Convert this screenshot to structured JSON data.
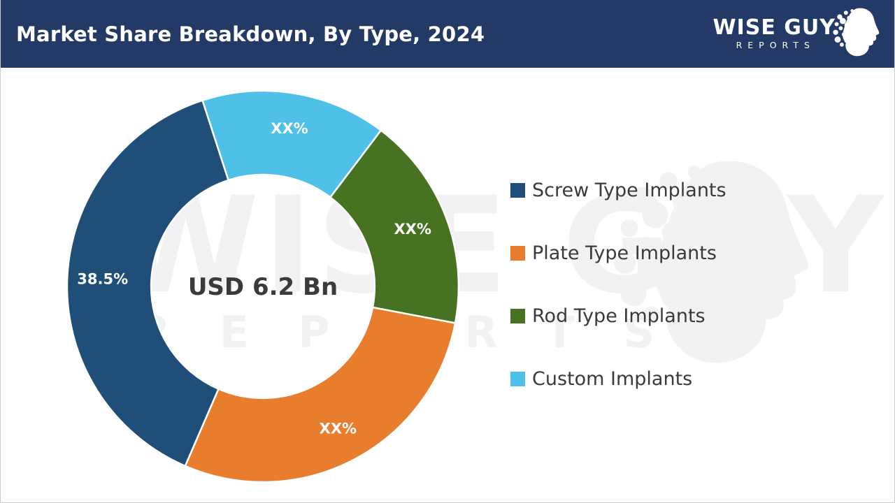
{
  "header": {
    "title": "Market Share Breakdown, By Type, 2024",
    "logo": {
      "line1": "WISE GUY",
      "line2": "REPORTS"
    }
  },
  "watermark": {
    "line1": "WISE GUY",
    "line2": "REPORTS"
  },
  "colors": {
    "header_bg": "#233a66",
    "watermark": "#f2f2f4",
    "center_text": "#3a3a3a",
    "legend_text": "#3a3a3a",
    "slice_gap": "#ffffff"
  },
  "chart_data": {
    "type": "pie",
    "donut": true,
    "title": "Market Share Breakdown, By Type, 2024",
    "center_label": "USD 6.2 Bn",
    "categories": [
      "Screw Type Implants",
      "Plate Type Implants",
      "Rod Type Implants",
      "Custom Implants"
    ],
    "values": [
      38.5,
      28.5,
      17.7,
      15.3
    ],
    "display_labels": [
      "38.5%",
      "XX%",
      "XX%",
      "XX%"
    ],
    "colors": [
      "#1f4e78",
      "#e87d2e",
      "#477221",
      "#4fc0e8"
    ],
    "start_angle_deg": -18,
    "draw_order": [
      3,
      2,
      1,
      0
    ],
    "inner_radius_ratio": 0.571,
    "label_radius_ratio": 0.58,
    "legend_position": "right",
    "label_color": "#ffffff"
  }
}
